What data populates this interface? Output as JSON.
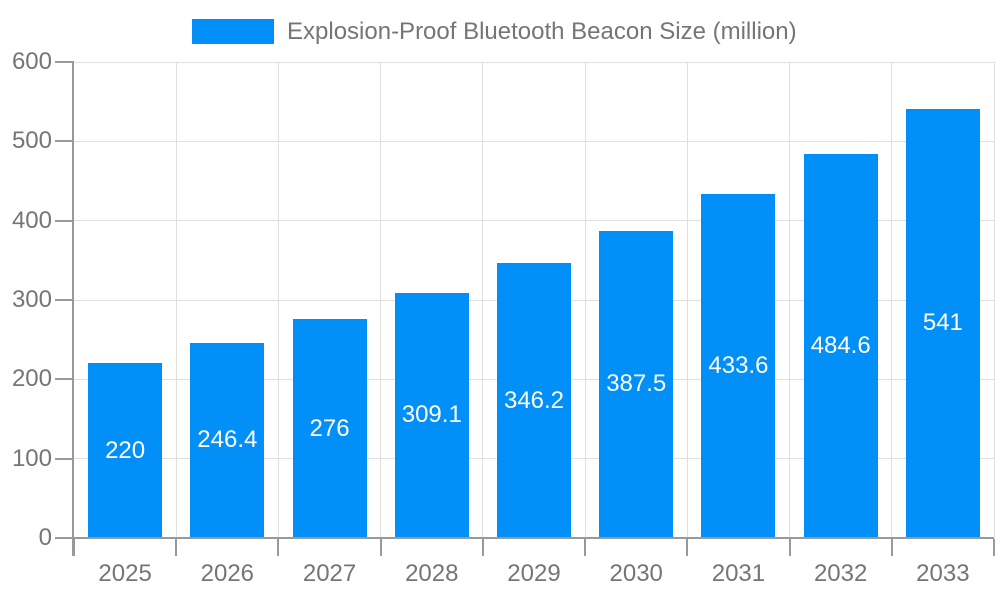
{
  "chart_data": {
    "type": "bar",
    "title": "Explosion-Proof Bluetooth Beacon Size (million)",
    "categories": [
      "2025",
      "2026",
      "2027",
      "2028",
      "2029",
      "2030",
      "2031",
      "2032",
      "2033"
    ],
    "values": [
      220,
      246.4,
      276,
      309.1,
      346.2,
      387.5,
      433.6,
      484.6,
      541
    ],
    "value_labels": [
      "220",
      "246.4",
      "276",
      "309.1",
      "346.2",
      "387.5",
      "433.6",
      "484.6",
      "541"
    ],
    "xlabel": "",
    "ylabel": "",
    "ylim": [
      0,
      600
    ],
    "ytick_interval": 100,
    "yticks": [
      0,
      100,
      200,
      300,
      400,
      500,
      600
    ],
    "grid": true,
    "legend_position": "top",
    "colors": {
      "bar": "#0290f8",
      "value_label": "#ffffff",
      "grid": "#e0e0e0",
      "axis": "#999999",
      "tick_label": "#757575",
      "legend_text": "#757575",
      "background": "#ffffff"
    }
  }
}
